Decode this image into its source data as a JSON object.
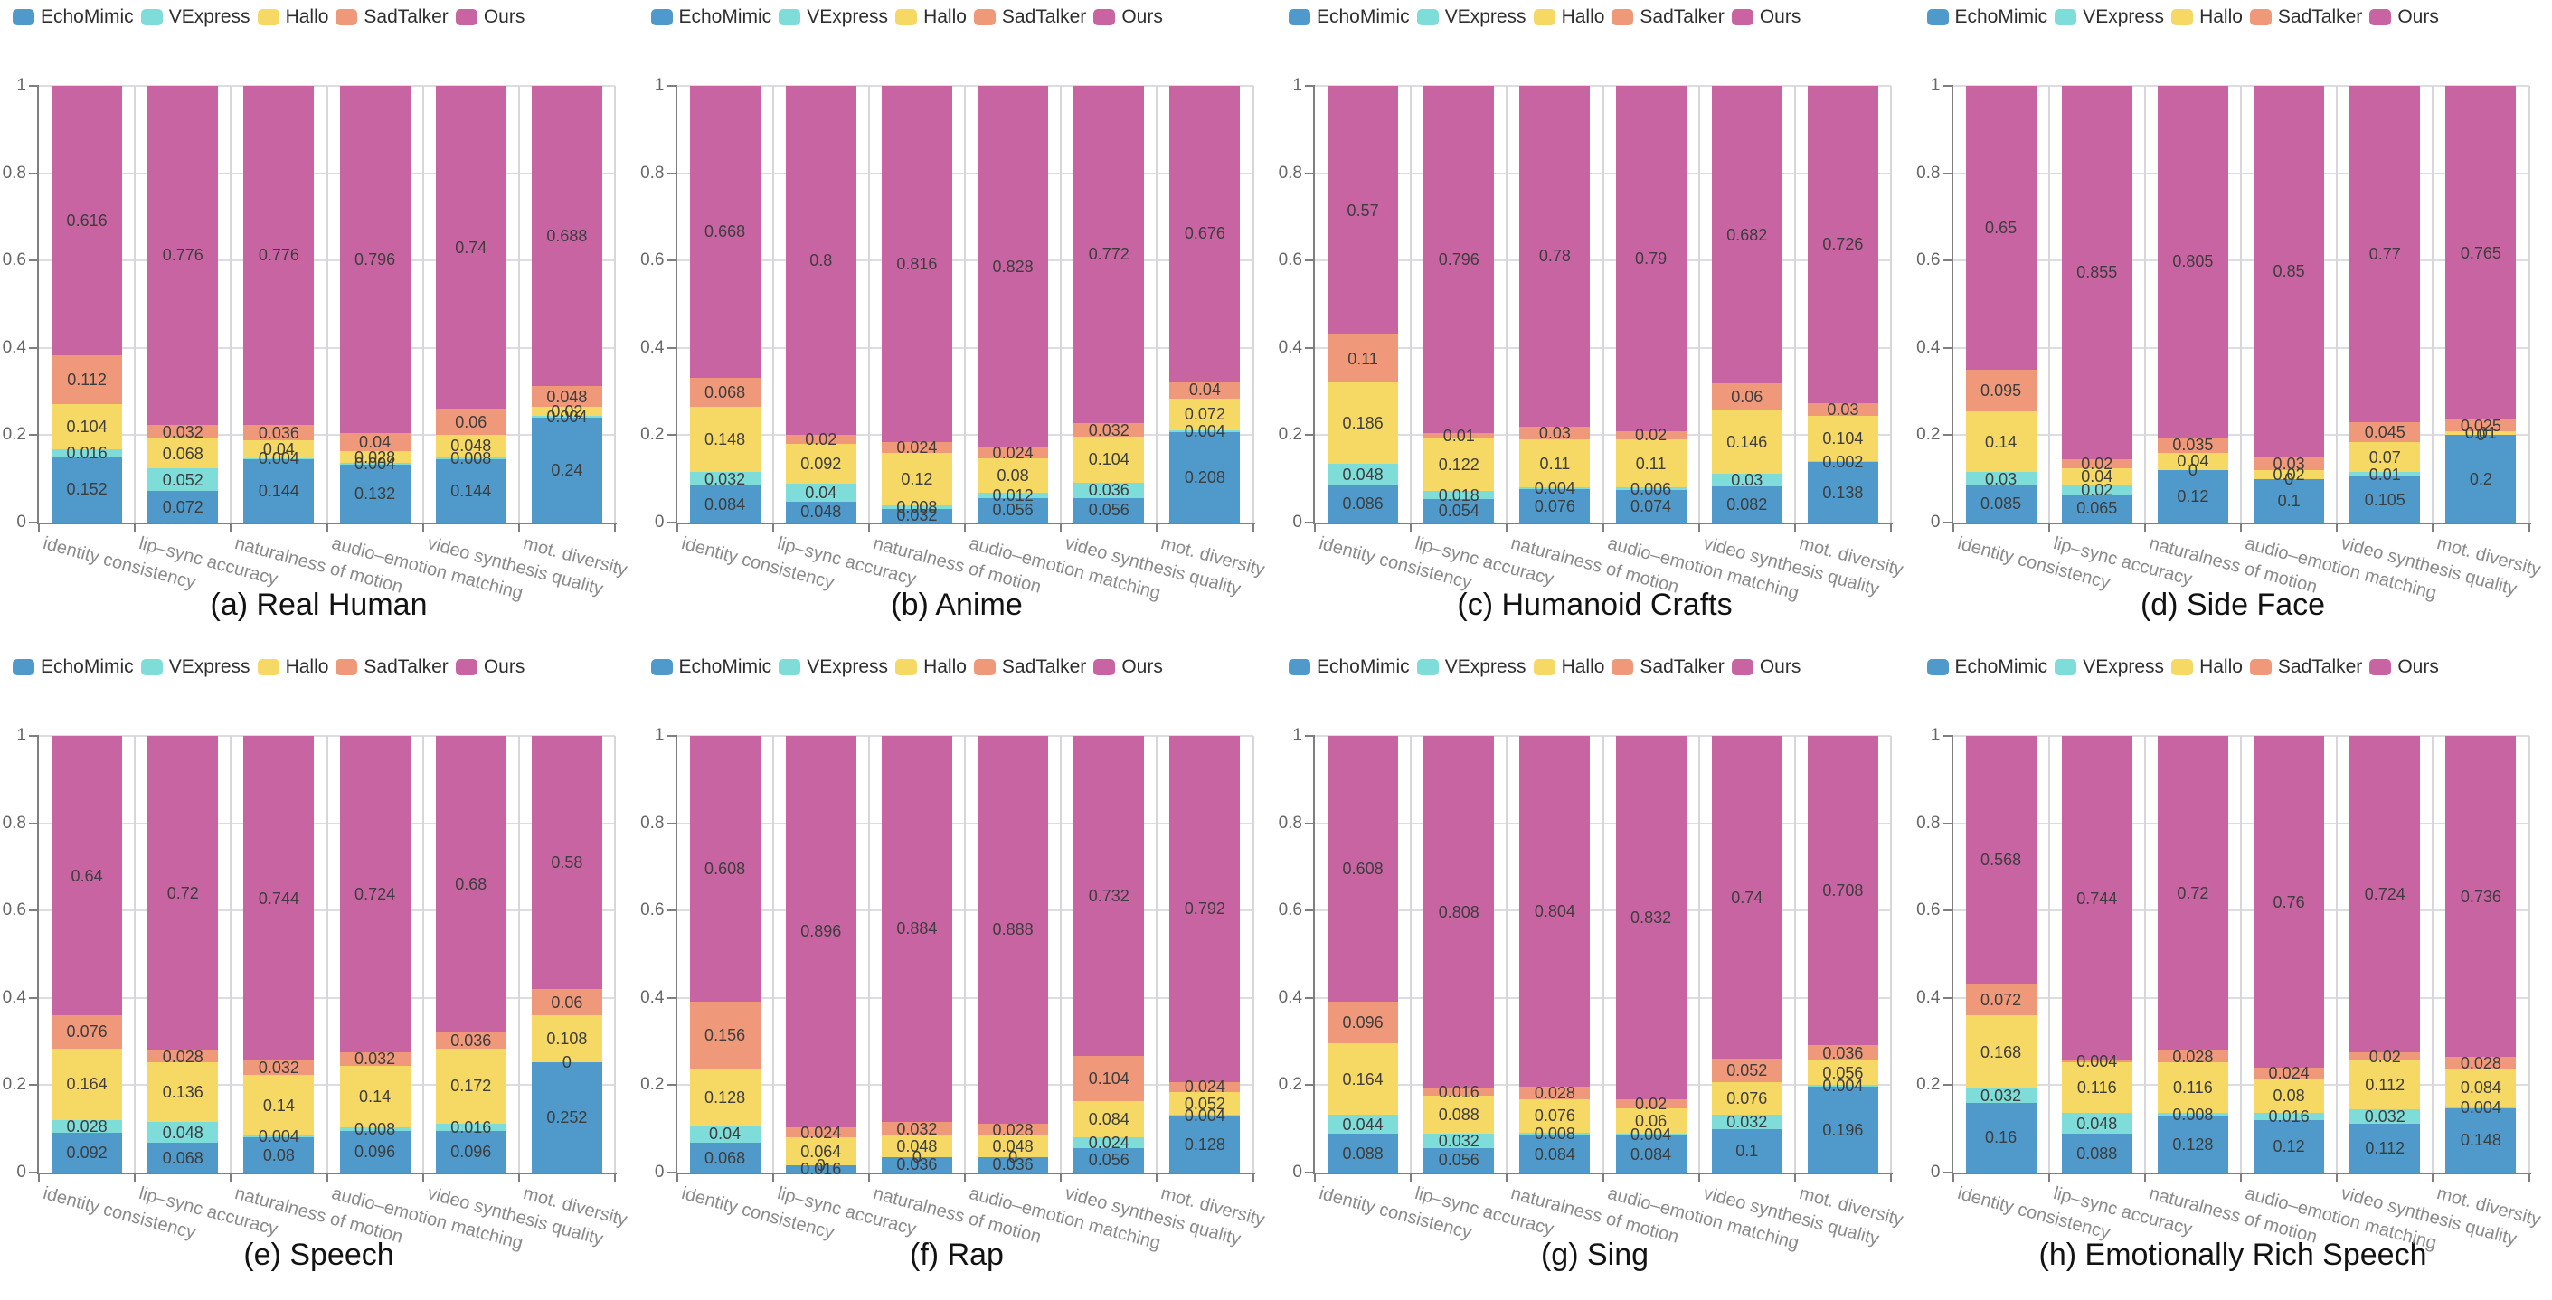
{
  "legend": {
    "items": [
      {
        "label": "EchoMimic",
        "color": "#4f9acb"
      },
      {
        "label": "VExpress",
        "color": "#7edcd9"
      },
      {
        "label": "Hallo",
        "color": "#f6d964"
      },
      {
        "label": "SadTalker",
        "color": "#f0997a"
      },
      {
        "label": "Ours",
        "color": "#c964a3"
      }
    ]
  },
  "axis": {
    "yticks": [
      "0",
      "0.2",
      "0.4",
      "0.6",
      "0.8",
      "1"
    ],
    "grid": "horizontal, light gray, visible in bar gaps",
    "label_color": "#666666"
  },
  "chart_data": [
    {
      "type": "bar",
      "stacked": true,
      "title": "(a) Real Human",
      "ylim": [
        0,
        1
      ],
      "categories": [
        "identity consistency",
        "lip–sync accuracy",
        "naturalness of motion",
        "audio–emotion matching",
        "video synthesis quality",
        "mot. diversity"
      ],
      "series": [
        {
          "name": "EchoMimic",
          "values": [
            0.152,
            0.072,
            0.144,
            0.132,
            0.144,
            0.24
          ]
        },
        {
          "name": "VExpress",
          "values": [
            0.016,
            0.052,
            0.004,
            0.004,
            0.008,
            0.004
          ]
        },
        {
          "name": "Hallo",
          "values": [
            0.104,
            0.068,
            0.04,
            0.028,
            0.048,
            0.02
          ]
        },
        {
          "name": "SadTalker",
          "values": [
            0.112,
            0.032,
            0.036,
            0.04,
            0.06,
            0.048
          ]
        },
        {
          "name": "Ours",
          "values": [
            0.616,
            0.776,
            0.776,
            0.796,
            0.74,
            0.688
          ]
        }
      ]
    },
    {
      "type": "bar",
      "stacked": true,
      "title": "(b) Anime",
      "ylim": [
        0,
        1
      ],
      "categories": [
        "identity consistency",
        "lip–sync accuracy",
        "naturalness of motion",
        "audio–emotion matching",
        "video synthesis quality",
        "mot. diversity"
      ],
      "series": [
        {
          "name": "EchoMimic",
          "values": [
            0.084,
            0.048,
            0.032,
            0.056,
            0.056,
            0.208
          ]
        },
        {
          "name": "VExpress",
          "values": [
            0.032,
            0.04,
            0.008,
            0.012,
            0.036,
            0.004
          ]
        },
        {
          "name": "Hallo",
          "values": [
            0.148,
            0.092,
            0.12,
            0.08,
            0.104,
            0.072
          ]
        },
        {
          "name": "SadTalker",
          "values": [
            0.068,
            0.02,
            0.024,
            0.024,
            0.032,
            0.04
          ]
        },
        {
          "name": "Ours",
          "values": [
            0.668,
            0.8,
            0.816,
            0.828,
            0.772,
            0.676
          ]
        }
      ]
    },
    {
      "type": "bar",
      "stacked": true,
      "title": "(c) Humanoid Crafts",
      "ylim": [
        0,
        1
      ],
      "categories": [
        "identity consistency",
        "lip–sync accuracy",
        "naturalness of motion",
        "audio–emotion matching",
        "video synthesis quality",
        "mot. diversity"
      ],
      "series": [
        {
          "name": "EchoMimic",
          "values": [
            0.086,
            0.054,
            0.076,
            0.074,
            0.082,
            0.138
          ]
        },
        {
          "name": "VExpress",
          "values": [
            0.048,
            0.018,
            0.004,
            0.006,
            0.03,
            0.002
          ]
        },
        {
          "name": "Hallo",
          "values": [
            0.186,
            0.122,
            0.11,
            0.11,
            0.146,
            0.104
          ]
        },
        {
          "name": "SadTalker",
          "values": [
            0.11,
            0.01,
            0.03,
            0.02,
            0.06,
            0.03
          ]
        },
        {
          "name": "Ours",
          "values": [
            0.57,
            0.796,
            0.78,
            0.79,
            0.682,
            0.726
          ]
        }
      ]
    },
    {
      "type": "bar",
      "stacked": true,
      "title": "(d) Side Face",
      "ylim": [
        0,
        1
      ],
      "categories": [
        "identity consistency",
        "lip–sync accuracy",
        "naturalness of motion",
        "audio–emotion matching",
        "video synthesis quality",
        "mot. diversity"
      ],
      "series": [
        {
          "name": "EchoMimic",
          "values": [
            0.085,
            0.065,
            0.12,
            0.1,
            0.105,
            0.2
          ]
        },
        {
          "name": "VExpress",
          "values": [
            0.03,
            0.02,
            0,
            0,
            0.01,
            0
          ]
        },
        {
          "name": "Hallo",
          "values": [
            0.14,
            0.04,
            0.04,
            0.02,
            0.07,
            0.01
          ]
        },
        {
          "name": "SadTalker",
          "values": [
            0.095,
            0.02,
            0.035,
            0.03,
            0.045,
            0.025
          ]
        },
        {
          "name": "Ours",
          "values": [
            0.65,
            0.855,
            0.805,
            0.85,
            0.77,
            0.765
          ]
        }
      ]
    },
    {
      "type": "bar",
      "stacked": true,
      "title": "(e) Speech",
      "ylim": [
        0,
        1
      ],
      "categories": [
        "identity consistency",
        "lip–sync accuracy",
        "naturalness of motion",
        "audio–emotion matching",
        "video synthesis quality",
        "mot. diversity"
      ],
      "series": [
        {
          "name": "EchoMimic",
          "values": [
            0.092,
            0.068,
            0.08,
            0.096,
            0.096,
            0.252
          ]
        },
        {
          "name": "VExpress",
          "values": [
            0.028,
            0.048,
            0.004,
            0.008,
            0.016,
            0
          ]
        },
        {
          "name": "Hallo",
          "values": [
            0.164,
            0.136,
            0.14,
            0.14,
            0.172,
            0.108
          ]
        },
        {
          "name": "SadTalker",
          "values": [
            0.076,
            0.028,
            0.032,
            0.032,
            0.036,
            0.06
          ]
        },
        {
          "name": "Ours",
          "values": [
            0.64,
            0.72,
            0.744,
            0.724,
            0.68,
            0.58
          ]
        }
      ]
    },
    {
      "type": "bar",
      "stacked": true,
      "title": "(f) Rap",
      "ylim": [
        0,
        1
      ],
      "categories": [
        "identity consistency",
        "lip–sync accuracy",
        "naturalness of motion",
        "audio–emotion matching",
        "video synthesis quality",
        "mot. diversity"
      ],
      "series": [
        {
          "name": "EchoMimic",
          "values": [
            0.068,
            0.016,
            0.036,
            0.036,
            0.056,
            0.128
          ]
        },
        {
          "name": "VExpress",
          "values": [
            0.04,
            0,
            0,
            0,
            0.024,
            0.004
          ]
        },
        {
          "name": "Hallo",
          "values": [
            0.128,
            0.064,
            0.048,
            0.048,
            0.084,
            0.052
          ]
        },
        {
          "name": "SadTalker",
          "values": [
            0.156,
            0.024,
            0.032,
            0.028,
            0.104,
            0.024
          ]
        },
        {
          "name": "Ours",
          "values": [
            0.608,
            0.896,
            0.884,
            0.888,
            0.732,
            0.792
          ]
        }
      ]
    },
    {
      "type": "bar",
      "stacked": true,
      "title": "(g) Sing",
      "ylim": [
        0,
        1
      ],
      "categories": [
        "identity consistency",
        "lip–sync accuracy",
        "naturalness of motion",
        "audio–emotion matching",
        "video synthesis quality",
        "mot. diversity"
      ],
      "series": [
        {
          "name": "EchoMimic",
          "values": [
            0.088,
            0.056,
            0.084,
            0.084,
            0.1,
            0.196
          ]
        },
        {
          "name": "VExpress",
          "values": [
            0.044,
            0.032,
            0.008,
            0.004,
            0.032,
            0.004
          ]
        },
        {
          "name": "Hallo",
          "values": [
            0.164,
            0.088,
            0.076,
            0.06,
            0.076,
            0.056
          ]
        },
        {
          "name": "SadTalker",
          "values": [
            0.096,
            0.016,
            0.028,
            0.02,
            0.052,
            0.036
          ]
        },
        {
          "name": "Ours",
          "values": [
            0.608,
            0.808,
            0.804,
            0.832,
            0.74,
            0.708
          ]
        }
      ]
    },
    {
      "type": "bar",
      "stacked": true,
      "title": "(h) Emotionally Rich Speech",
      "ylim": [
        0,
        1
      ],
      "categories": [
        "identity consistency",
        "lip–sync accuracy",
        "naturalness of motion",
        "audio–emotion matching",
        "video synthesis quality",
        "mot. diversity"
      ],
      "series": [
        {
          "name": "EchoMimic",
          "values": [
            0.16,
            0.088,
            0.128,
            0.12,
            0.112,
            0.148
          ]
        },
        {
          "name": "VExpress",
          "values": [
            0.032,
            0.048,
            0.008,
            0.016,
            0.032,
            0.004
          ]
        },
        {
          "name": "Hallo",
          "values": [
            0.168,
            0.116,
            0.116,
            0.08,
            0.112,
            0.084
          ]
        },
        {
          "name": "SadTalker",
          "values": [
            0.072,
            0.004,
            0.028,
            0.024,
            0.02,
            0.028
          ]
        },
        {
          "name": "Ours",
          "values": [
            0.568,
            0.744,
            0.72,
            0.76,
            0.724,
            0.736
          ]
        }
      ]
    }
  ]
}
